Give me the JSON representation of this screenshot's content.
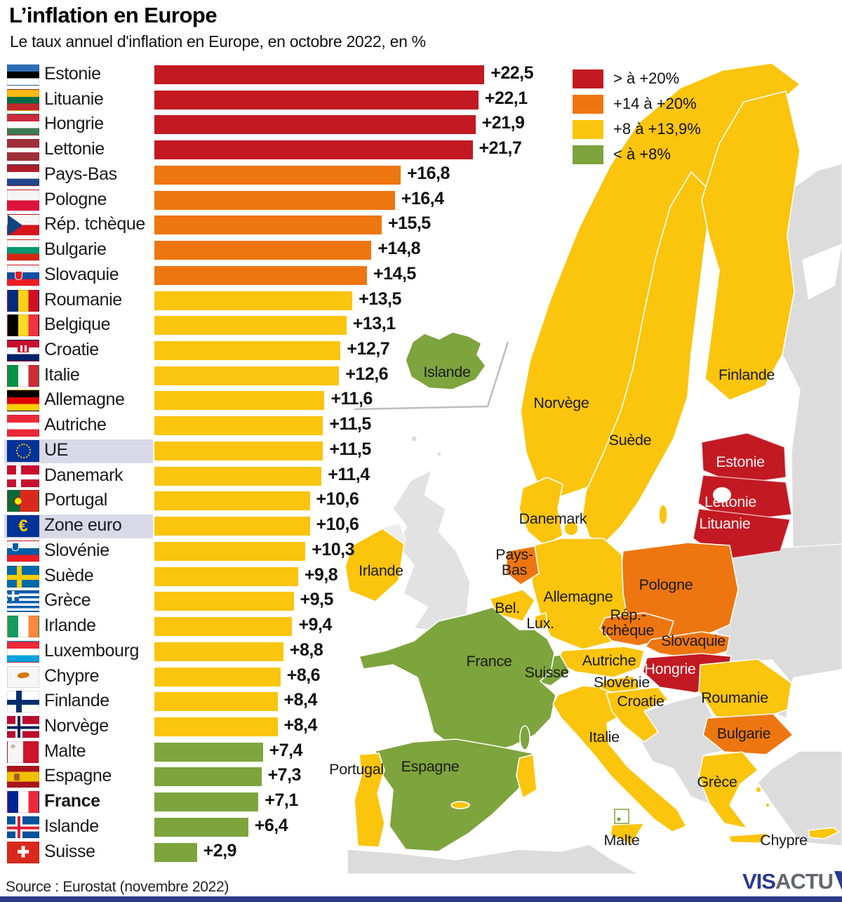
{
  "title": "L’inflation en Europe",
  "subtitle": "Le taux annuel d'inflation en Europe, en octobre 2022, en %",
  "palette": {
    "red": "#c31922",
    "orange": "#ee7611",
    "yellow": "#fbc40d",
    "green": "#7da43d",
    "highlight": "#d9d9e8",
    "gray_land": "#dcdcdc",
    "footer_bar": "#2d3a8c"
  },
  "legend": {
    "items": [
      {
        "label": "> à +20%",
        "color": "red"
      },
      {
        "label": "+14 à +20%",
        "color": "orange"
      },
      {
        "label": "+8 à +13,9%",
        "color": "yellow"
      },
      {
        "label": "< à +8%",
        "color": "green"
      }
    ]
  },
  "chart_data": {
    "type": "bar",
    "title": "L’inflation en Europe",
    "subtitle": "Le taux annuel d'inflation en Europe, en octobre 2022, en %",
    "unit": "%",
    "orientation": "horizontal",
    "source": "Source : Eurostat (novembre 2022)",
    "categories": [
      "Estonie",
      "Lituanie",
      "Hongrie",
      "Lettonie",
      "Pays-Bas",
      "Pologne",
      "Rép. tchèque",
      "Bulgarie",
      "Slovaquie",
      "Roumanie",
      "Belgique",
      "Croatie",
      "Italie",
      "Allemagne",
      "Autriche",
      "UE",
      "Danemark",
      "Portugal",
      "Zone euro",
      "Slovénie",
      "Suède",
      "Grèce",
      "Irlande",
      "Luxembourg",
      "Chypre",
      "Finlande",
      "Norvège",
      "Malte",
      "Espagne",
      "France",
      "Islande",
      "Suisse"
    ],
    "values": [
      22.5,
      22.1,
      21.9,
      21.7,
      16.8,
      16.4,
      15.5,
      14.8,
      14.5,
      13.5,
      13.1,
      12.7,
      12.6,
      11.6,
      11.5,
      11.5,
      11.4,
      10.6,
      10.6,
      10.3,
      9.8,
      9.5,
      9.4,
      8.8,
      8.6,
      8.4,
      8.4,
      7.4,
      7.3,
      7.1,
      6.4,
      2.9
    ],
    "value_labels": [
      "+22,5",
      "+22,1",
      "+21,9",
      "+21,7",
      "+16,8",
      "+16,4",
      "+15,5",
      "+14,8",
      "+14,5",
      "+13,5",
      "+13,1",
      "+12,7",
      "+12,6",
      "+11,6",
      "+11,5",
      "+11,5",
      "+11,4",
      "+10,6",
      "+10,6",
      "+10,3",
      "+9,8",
      "+9,5",
      "+9,4",
      "+8,8",
      "+8,6",
      "+8,4",
      "+8,4",
      "+7,4",
      "+7,3",
      "+7,1",
      "+6,4",
      "+2,9"
    ],
    "bar_colors": [
      "red",
      "red",
      "red",
      "red",
      "orange",
      "orange",
      "orange",
      "orange",
      "orange",
      "yellow",
      "yellow",
      "yellow",
      "yellow",
      "yellow",
      "yellow",
      "yellow",
      "yellow",
      "yellow",
      "yellow",
      "yellow",
      "yellow",
      "yellow",
      "yellow",
      "yellow",
      "yellow",
      "yellow",
      "yellow",
      "green",
      "green",
      "green",
      "green",
      "green"
    ],
    "flags": [
      "ee",
      "lt",
      "hu",
      "lv",
      "nl",
      "pl",
      "cz",
      "bg",
      "sk",
      "ro",
      "be",
      "hr",
      "it",
      "de",
      "at",
      "eu",
      "dk",
      "pt",
      "euro",
      "si",
      "se",
      "gr",
      "ie",
      "lu",
      "cy",
      "fi",
      "no",
      "mt",
      "es",
      "fr",
      "is",
      "ch"
    ],
    "highlighted_rows": [
      "UE",
      "Zone euro"
    ],
    "bold_rows": [
      "France"
    ]
  },
  "map": {
    "labels": [
      {
        "id": "islande",
        "text": "Islande",
        "white": false
      },
      {
        "id": "norvege",
        "text": "Norvège",
        "white": false
      },
      {
        "id": "suede",
        "text": "Suède",
        "white": false
      },
      {
        "id": "finlande",
        "text": "Finlande",
        "white": false
      },
      {
        "id": "estonie",
        "text": "Estonie",
        "white": true
      },
      {
        "id": "lettonie",
        "text": "Lettonie",
        "white": true
      },
      {
        "id": "lituanie",
        "text": "Lituanie",
        "white": true
      },
      {
        "id": "danemark",
        "text": "Danemark",
        "white": false
      },
      {
        "id": "irlande",
        "text": "Irlande",
        "white": false
      },
      {
        "id": "pays_bas",
        "text": "Pays-\nBas",
        "white": false
      },
      {
        "id": "allemagne",
        "text": "Allemagne",
        "white": false
      },
      {
        "id": "bel",
        "text": "Bel.",
        "white": false
      },
      {
        "id": "lux",
        "text": "Lux.",
        "white": false
      },
      {
        "id": "pologne",
        "text": "Pologne",
        "white": false
      },
      {
        "id": "rep_tcheque",
        "text": "Rép.-\ntchèque",
        "white": false
      },
      {
        "id": "slovaquie",
        "text": "Slovaquie",
        "white": false
      },
      {
        "id": "autriche",
        "text": "Autriche",
        "white": false
      },
      {
        "id": "hongrie",
        "text": "Hongrie",
        "white": true
      },
      {
        "id": "france",
        "text": "France",
        "white": false
      },
      {
        "id": "suisse",
        "text": "Suisse",
        "white": false
      },
      {
        "id": "slovenie",
        "text": "Slovénie",
        "white": false
      },
      {
        "id": "croatie",
        "text": "Croatie",
        "white": false
      },
      {
        "id": "roumanie",
        "text": "Roumanie",
        "white": false
      },
      {
        "id": "bulgarie",
        "text": "Bulgarie",
        "white": false
      },
      {
        "id": "italie",
        "text": "Italie",
        "white": false
      },
      {
        "id": "espagne",
        "text": "Espagne",
        "white": false
      },
      {
        "id": "portugal",
        "text": "Portugal",
        "white": false
      },
      {
        "id": "malte",
        "text": "Malte",
        "white": false
      },
      {
        "id": "grece",
        "text": "Grèce",
        "white": false
      },
      {
        "id": "chypre",
        "text": "Chypre",
        "white": false
      }
    ]
  },
  "footer": {
    "source": "Source : Eurostat (novembre 2022)",
    "brand_vis": "VIS",
    "brand_actu": "ACTU"
  }
}
